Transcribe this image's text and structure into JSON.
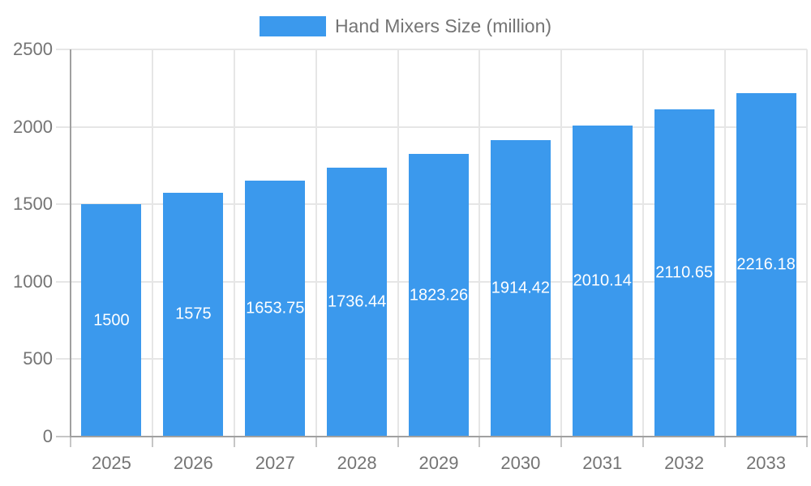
{
  "chart_data": {
    "type": "bar",
    "legend": "Hand Mixers Size (million)",
    "legend_position": "top",
    "categories": [
      "2025",
      "2026",
      "2027",
      "2028",
      "2029",
      "2030",
      "2031",
      "2032",
      "2033"
    ],
    "series": [
      {
        "name": "Hand Mixers Size (million)",
        "values": [
          1500,
          1575,
          1653.75,
          1736.44,
          1823.26,
          1914.42,
          2010.14,
          2110.65,
          2216.18
        ],
        "labels": [
          "1500",
          "1575",
          "1653.75",
          "1736.44",
          "1823.26",
          "1914.42",
          "2010.14",
          "2110.65",
          "2216.18"
        ]
      }
    ],
    "ylim": [
      0,
      2500
    ],
    "yticks": [
      0,
      500,
      1000,
      1500,
      2000,
      2500
    ],
    "ytick_labels": [
      "0",
      "500",
      "1000",
      "1500",
      "2000",
      "2500"
    ],
    "grid": true,
    "bar_label_position": "inside-center",
    "colors": {
      "bar": "#3b99ed",
      "bar_label": "#ffffff",
      "axis_text": "#747474",
      "grid_line": "#e6e6e6",
      "axis_line": "#a0a0a0",
      "tick": "#c6c6c6",
      "background": "#ffffff"
    }
  }
}
